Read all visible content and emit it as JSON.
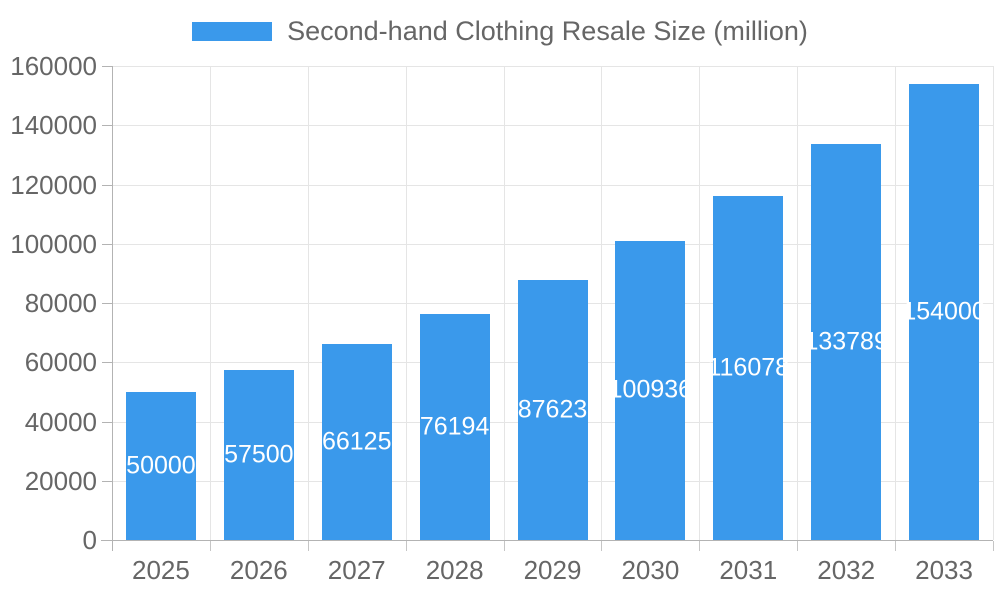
{
  "chart_data": {
    "type": "bar",
    "title": "Second-hand Clothing Resale Size (million)",
    "legend_position": "top",
    "categories": [
      "2025",
      "2026",
      "2027",
      "2028",
      "2029",
      "2030",
      "2031",
      "2032",
      "2033"
    ],
    "values": [
      50000,
      57500,
      66125,
      76194,
      87623,
      100936,
      116078,
      133789,
      154000
    ],
    "series": [
      {
        "name": "Second-hand Clothing Resale Size (million)",
        "values": [
          50000,
          57500,
          66125,
          76194,
          87623,
          100936,
          116078,
          133789,
          154000
        ]
      }
    ],
    "xlabel": "",
    "ylabel": "",
    "ylim": [
      0,
      160000
    ],
    "yticks": [
      0,
      20000,
      40000,
      60000,
      80000,
      100000,
      120000,
      140000,
      160000
    ],
    "grid": "both",
    "value_labels": "inside-middle",
    "colors": {
      "bar": "#3a99eb",
      "grid": "#e5e5e5",
      "axis": "#b3b3b3",
      "tick": "#c6c6c6",
      "text": "#666666",
      "value_label": "#ffffff",
      "background": "#ffffff"
    }
  }
}
